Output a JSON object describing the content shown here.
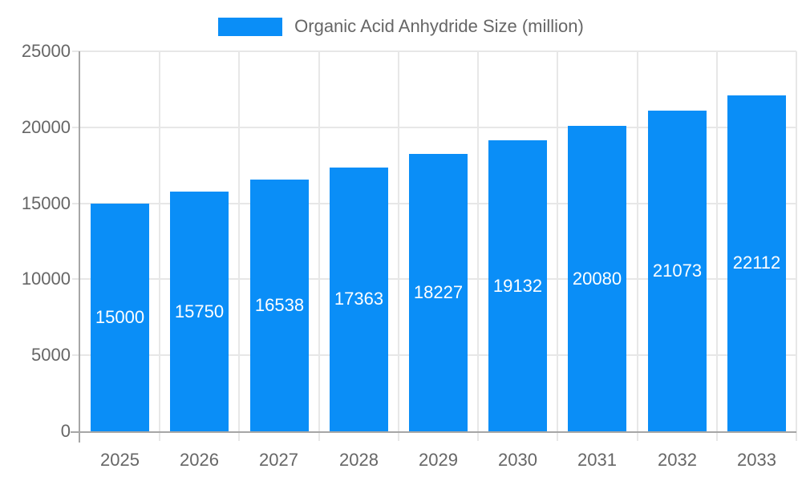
{
  "chart_data": {
    "type": "bar",
    "title": "Organic Acid Anhydride Size (million)",
    "categories": [
      "2025",
      "2026",
      "2027",
      "2028",
      "2029",
      "2030",
      "2031",
      "2032",
      "2033"
    ],
    "values": [
      15000,
      15750,
      16538,
      17363,
      18227,
      19132,
      20080,
      21073,
      22112
    ],
    "xlabel": "",
    "ylabel": "",
    "ylim": [
      0,
      25000
    ],
    "y_ticks": [
      0,
      5000,
      10000,
      15000,
      20000,
      25000
    ],
    "grid": true,
    "legend_position": "top-center",
    "data_labels": "inside-center",
    "colors": {
      "bar": "#0A8EF7",
      "text": "#666666",
      "grid": "#e7e7e7",
      "axis": "#a6a6a6",
      "value_label": "#ffffff",
      "background": "#ffffff"
    }
  }
}
